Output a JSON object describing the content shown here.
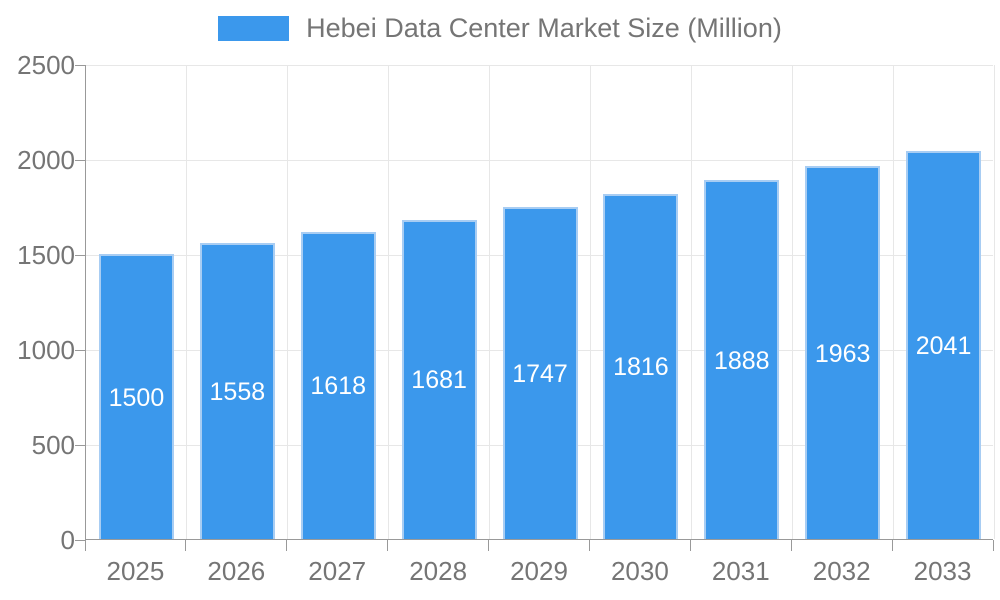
{
  "chart_data": {
    "type": "bar",
    "title": "Hebei Data Center Market Size (Million)",
    "categories": [
      "2025",
      "2026",
      "2027",
      "2028",
      "2029",
      "2030",
      "2031",
      "2032",
      "2033"
    ],
    "series": [
      {
        "name": "Hebei Data Center Market Size (Million)",
        "values": [
          1500,
          1558,
          1618,
          1681,
          1747,
          1816,
          1888,
          1963,
          2041
        ]
      }
    ],
    "xlabel": "",
    "ylabel": "",
    "ylim": [
      0,
      2500
    ],
    "yticks": [
      0,
      500,
      1000,
      1500,
      2000,
      2500
    ],
    "grid": true,
    "legend_position": "top-center",
    "value_labels": "inside-center",
    "colors": {
      "bar_fill": "#3b98ec",
      "bar_border": "#a8cdf3",
      "grid_line": "#e7e7e7",
      "axis_line": "#999999",
      "tick_label": "#757575",
      "value_label": "#ffffff",
      "background": "#ffffff"
    }
  }
}
